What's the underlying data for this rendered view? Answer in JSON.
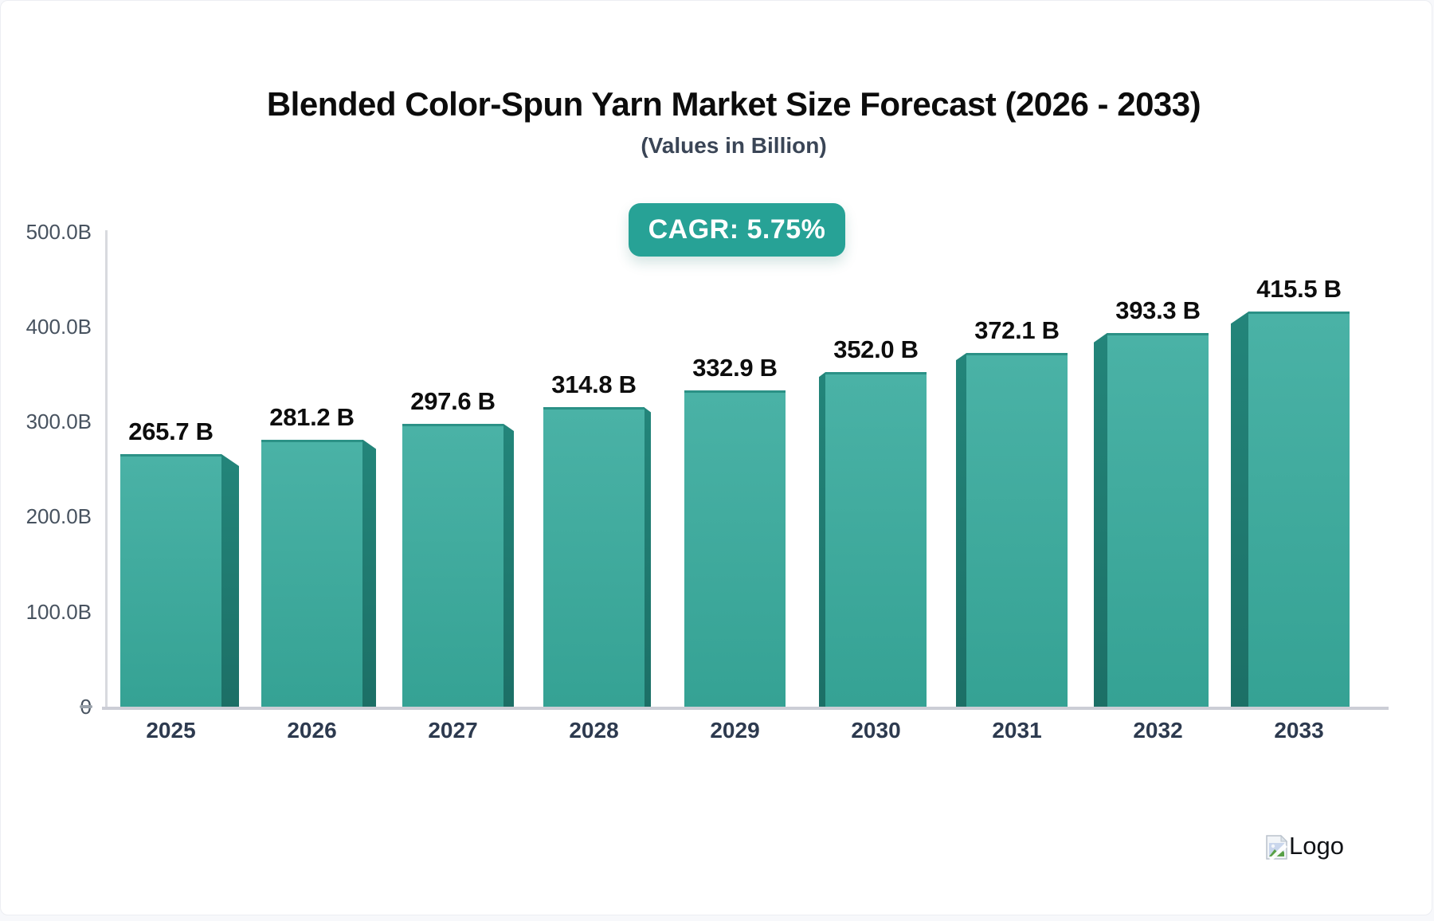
{
  "header": {
    "title": "Blended Color-Spun Yarn Market Size Forecast (2026 - 2033)",
    "subtitle": "(Values in Billion)",
    "badge_label": "CAGR: 5.75%"
  },
  "logo": {
    "alt_text": "Logo",
    "icon": "broken-image-icon"
  },
  "colors": {
    "accent": "#27a296",
    "bar_face_top": "#4ab2a6",
    "bar_face_bottom": "#35a294",
    "bar_top_edge": "#2b9186",
    "bar_side_top": "#23857a",
    "bar_side_bottom": "#1c6f66",
    "axis": "#d8dade",
    "baseline": "#ccced6"
  },
  "chart_data": {
    "type": "bar",
    "effect": "3d-perspective",
    "title": "Blended Color-Spun Yarn Market Size Forecast (2026 - 2033)",
    "subtitle": "(Values in Billion)",
    "annotation": "CAGR: 5.75%",
    "xlabel": "",
    "ylabel": "",
    "unit": "Billion",
    "grid": false,
    "legend": "none",
    "ylim": [
      0,
      500
    ],
    "categories": [
      "2025",
      "2026",
      "2027",
      "2028",
      "2029",
      "2030",
      "2031",
      "2032",
      "2033"
    ],
    "values": [
      265.7,
      281.2,
      297.6,
      314.8,
      332.9,
      352.0,
      372.1,
      393.3,
      415.5
    ],
    "value_labels": [
      "265.7 B",
      "281.2 B",
      "297.6 B",
      "314.8 B",
      "332.9 B",
      "352.0 B",
      "372.1 B",
      "393.3 B",
      "415.5 B"
    ],
    "yticks": [
      {
        "value": 500,
        "label": "500.0B"
      },
      {
        "value": 400,
        "label": "400.0B"
      },
      {
        "value": 300,
        "label": "300.0B"
      },
      {
        "value": 200,
        "label": "200.0B"
      },
      {
        "value": 100,
        "label": "100.0B"
      },
      {
        "value": 0,
        "label": "0"
      }
    ]
  }
}
